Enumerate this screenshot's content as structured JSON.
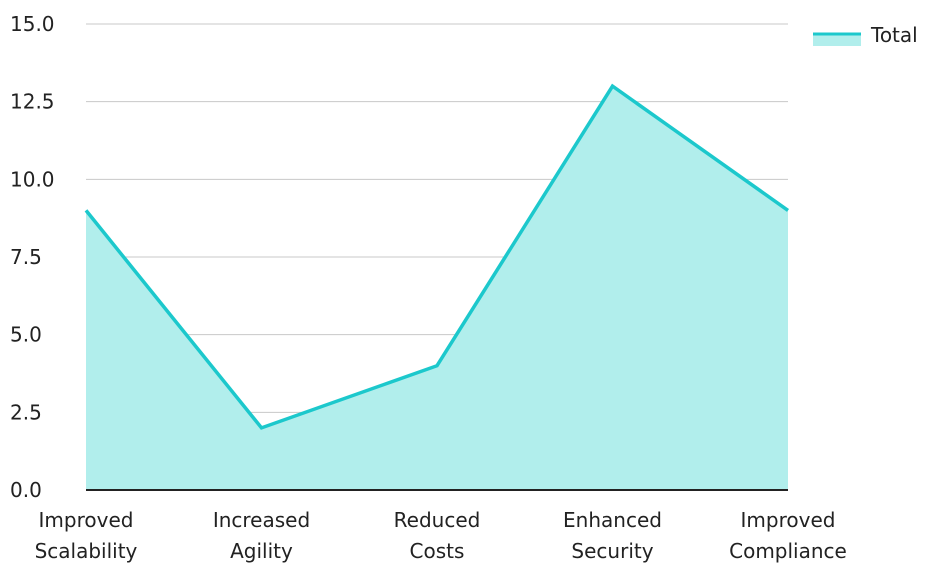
{
  "chart_data": {
    "type": "area",
    "categories": [
      [
        "Improved",
        "Scalability"
      ],
      [
        "Increased",
        "Agility"
      ],
      [
        "Reduced",
        "Costs"
      ],
      [
        "Enhanced",
        "Security"
      ],
      [
        "Improved",
        "Compliance"
      ]
    ],
    "series": [
      {
        "name": "Total",
        "values": [
          9,
          2,
          4,
          13,
          9
        ]
      }
    ],
    "ylim": [
      0,
      15
    ],
    "yticks": [
      "0.0",
      "2.5",
      "5.0",
      "7.5",
      "10.0",
      "12.5",
      "15.0"
    ],
    "grid": true,
    "legend_position": "top-right",
    "colors": {
      "line": "#1cc8cc",
      "fill": "#b1eeec",
      "grid": "#c8c8c8",
      "axis": "#222222"
    }
  }
}
